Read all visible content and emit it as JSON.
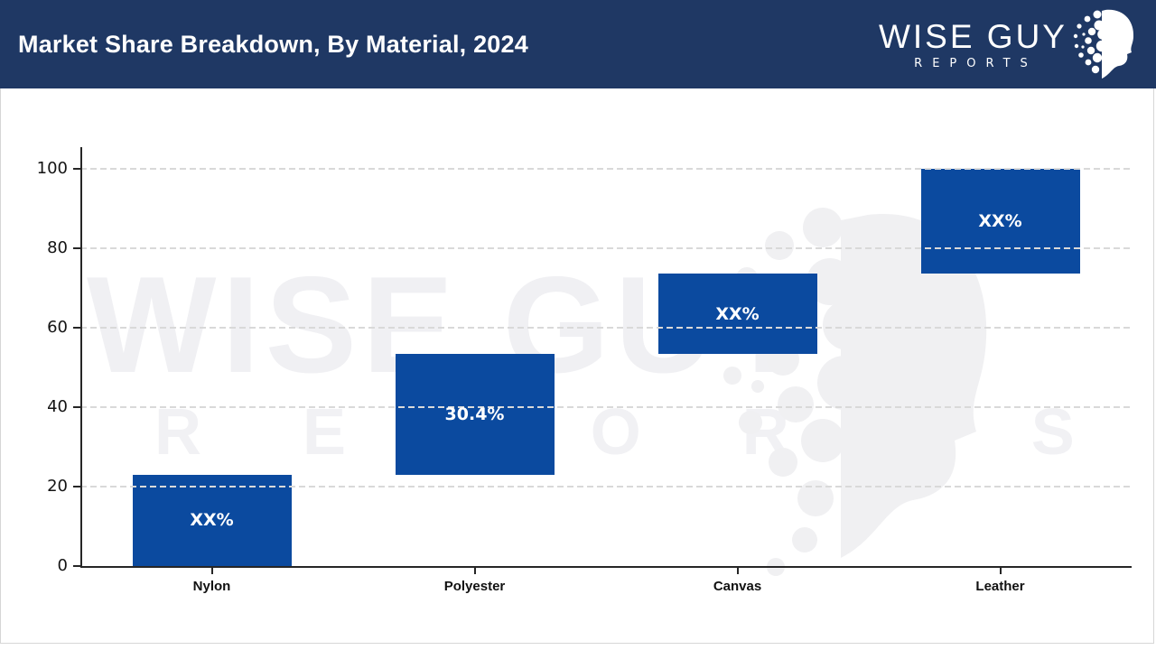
{
  "header": {
    "title": "Market Share Breakdown, By Material, 2024",
    "bg_color": "#1f3864",
    "logo": {
      "line1": "WISE GUY",
      "line2": "REPORTS"
    }
  },
  "watermark": {
    "line1": "WISE GUY",
    "line2": "REPORTS"
  },
  "chart_data": {
    "type": "bar",
    "subtype": "waterfall",
    "title": "Market Share Breakdown, By Material, 2024",
    "categories": [
      "Nylon",
      "Polyester",
      "Canvas",
      "Leather"
    ],
    "series": [
      {
        "name": "Market Share (%)",
        "segments": [
          {
            "category": "Nylon",
            "start": 0,
            "end": 23,
            "value_label": "XX%"
          },
          {
            "category": "Polyester",
            "start": 23,
            "end": 53.4,
            "value_label": "30.4%"
          },
          {
            "category": "Canvas",
            "start": 53.4,
            "end": 73.6,
            "value_label": "XX%"
          },
          {
            "category": "Leather",
            "start": 73.6,
            "end": 100,
            "value_label": "XX%"
          }
        ]
      }
    ],
    "xlabel": "",
    "ylabel": "",
    "ylim": [
      0,
      105
    ],
    "yticks": [
      0,
      20,
      40,
      60,
      80,
      100
    ],
    "grid": "dashed horizontal, drawn above bars",
    "legend": "none",
    "bar_color": "#0b4a9f",
    "label_color": "#ffffff"
  }
}
